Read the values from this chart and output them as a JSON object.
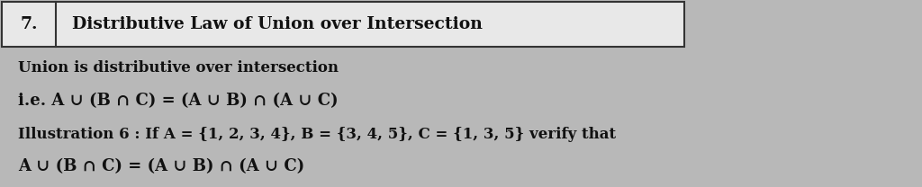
{
  "background_color": "#b8b8b8",
  "header_bg": "#e8e8e8",
  "header_text_color": "#111111",
  "number": "7.",
  "title": "Distributive Law of Union over Intersection",
  "line1": "Union is distributive over intersection",
  "line2": "i.e. A ∪ (B ∩ C) = (A ∪ B) ∩ (A ∪ C)",
  "line3": "Illustration 6 : If A = {1, 2, 3, 4}, B = {3, 4, 5}, C = {1, 3, 5} verify that",
  "line4": "A ∪ (B ∩ C) = (A ∪ B) ∩ (A ∪ C)",
  "text_color": "#111111",
  "box_outline_color": "#333333",
  "font_size_title": 13.5,
  "font_size_body": 12,
  "font_size_large": 13
}
